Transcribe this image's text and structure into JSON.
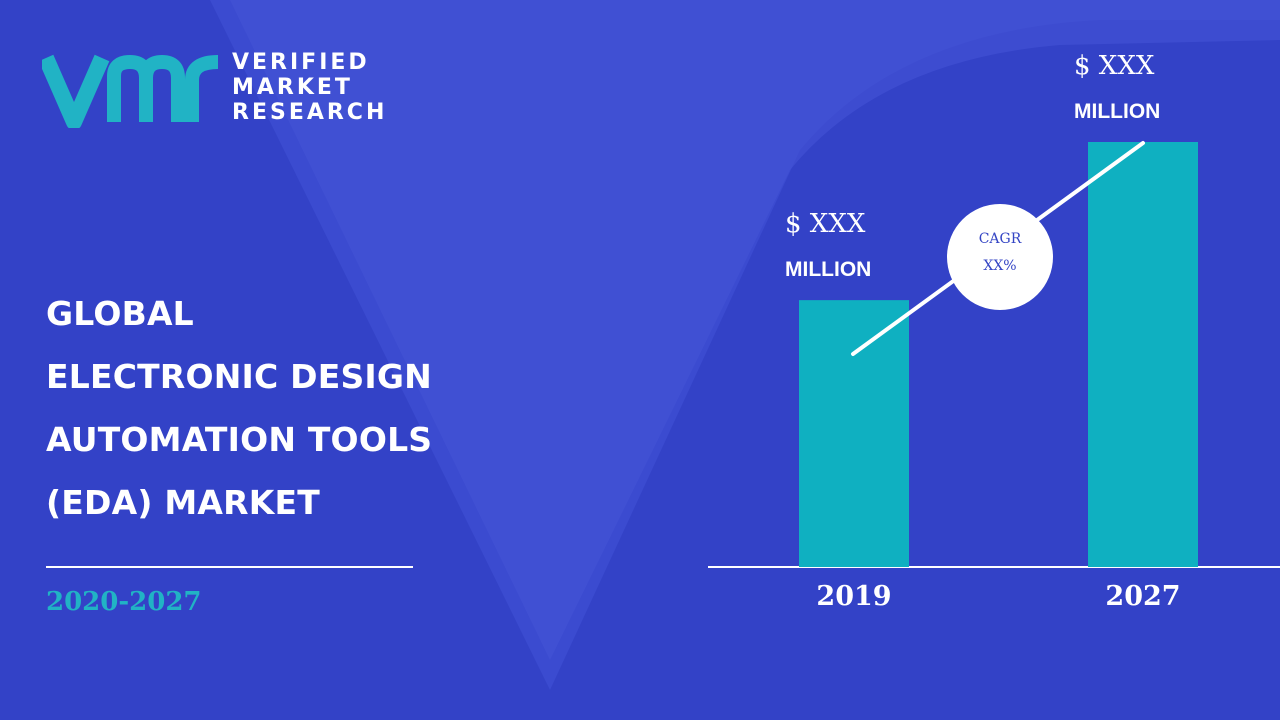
{
  "brand": {
    "name_lines": [
      "VERIFIED",
      "MARKET",
      "RESEARCH"
    ],
    "logo_letters": "vmr"
  },
  "headline": {
    "lines": [
      "GLOBAL",
      "ELECTRONIC DESIGN",
      "AUTOMATION TOOLS",
      "(EDA) MARKET"
    ],
    "period": "2020-2027"
  },
  "colors": {
    "background": "#3b4bd0",
    "background_dark": "#2e3cbf",
    "bar": "#0fb0c1",
    "accent": "#21b3c5",
    "text": "#ffffff",
    "cagr_text": "#3445c4"
  },
  "chart_data": {
    "type": "bar",
    "categories": [
      "2019",
      "2027"
    ],
    "values": [
      270,
      430
    ],
    "value_labels": [
      {
        "amount": "$ XXX",
        "unit": "MILLION"
      },
      {
        "amount": "$ XXX",
        "unit": "MILLION"
      }
    ],
    "annotation": {
      "label": "CAGR",
      "value": "XX%"
    },
    "ylim": [
      0,
      430
    ],
    "grid": false,
    "legend": "none"
  }
}
